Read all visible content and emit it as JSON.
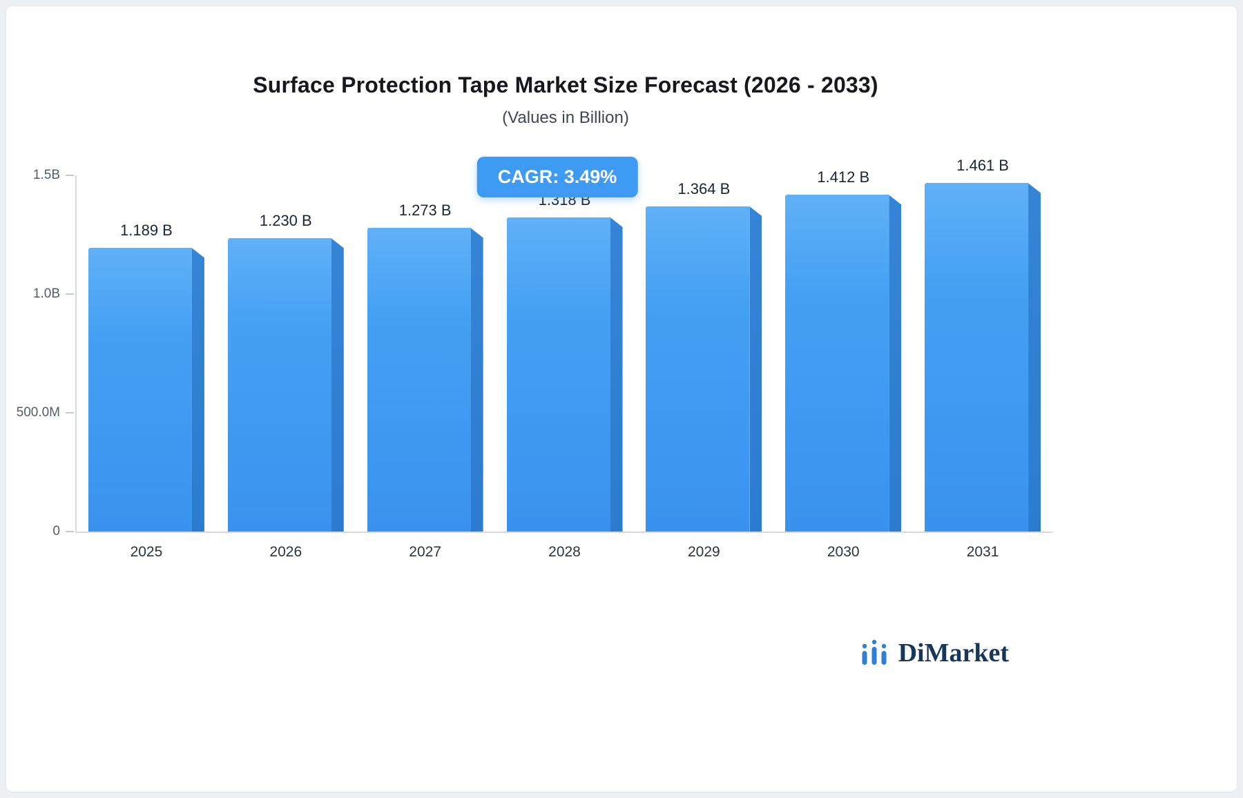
{
  "chart": {
    "title": "Surface Protection Tape Market Size Forecast (2026 - 2033)",
    "subtitle": "(Values in Billion)",
    "cagr_label": "CAGR: 3.49%"
  },
  "chart_data": {
    "type": "bar",
    "categories": [
      "2025",
      "2026",
      "2027",
      "2028",
      "2029",
      "2030",
      "2031"
    ],
    "values": [
      1.189,
      1.23,
      1.273,
      1.318,
      1.364,
      1.412,
      1.461
    ],
    "bar_labels": [
      "1.189 B",
      "1.230 B",
      "1.273 B",
      "1.318 B",
      "1.364 B",
      "1.412 B",
      "1.461 B"
    ],
    "title": "Surface Protection Tape Market Size Forecast (2026 - 2033)",
    "subtitle": "(Values in Billion)",
    "annotation": "CAGR: 3.49%",
    "xlabel": "",
    "ylabel": "",
    "ylim": [
      0,
      1.5
    ],
    "y_ticks": [
      {
        "label": "1.5B",
        "value": 1.5
      },
      {
        "label": "1.0B",
        "value": 1.0
      },
      {
        "label": "500.0M",
        "value": 0.5
      },
      {
        "label": "0",
        "value": 0.0
      }
    ],
    "grid": false,
    "legend": false,
    "bar_color": "#42A0F4",
    "bar_side_color": "#2B7CCF"
  },
  "branding": {
    "logo_text": "DiMarket"
  }
}
